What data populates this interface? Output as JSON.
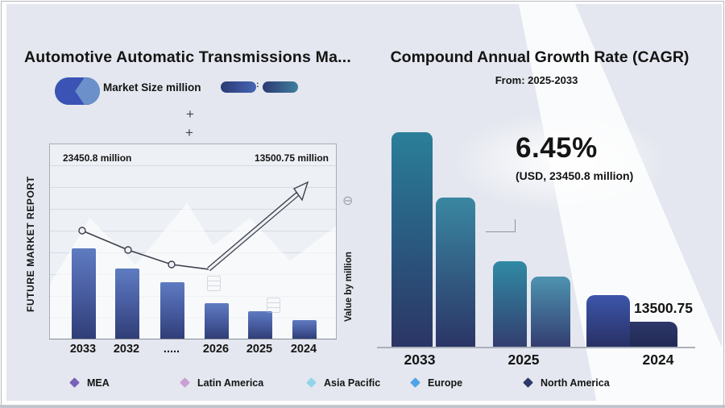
{
  "frame": {
    "bg": "#e4e7ef",
    "border_color": "#b6bac3"
  },
  "left_chart_ui": {
    "title": "Automotive Automatic Transmissions Ma...",
    "legend_label": "Market Size million",
    "legend_separator": ":",
    "plus_icon": "+",
    "plus_icon_2": "+",
    "minus_circle_icon": "⊖",
    "start_value": "23450.8 million",
    "end_value": "13500.75 million",
    "left_vertical_label": "FUTURE MARKET REPORT",
    "right_vertical_label": "Value by million"
  },
  "right_chart_ui": {
    "title": "Compound Annual Growth Rate (CAGR)",
    "subtitle": "From: 2025-2033",
    "cagr": "6.45%",
    "cagr_note": "(USD, 23450.8 million)",
    "annotation": "13500.75"
  },
  "bottom_legend": {
    "items": [
      {
        "label": "MEA",
        "color": "#7a62b8"
      },
      {
        "label": "Latin America",
        "color": "#c99fd4"
      },
      {
        "label": "Asia Pacific",
        "color": "#93d4ea"
      },
      {
        "label": "Europe",
        "color": "#4fa3e8"
      },
      {
        "label": "North America",
        "color": "#2c3968"
      }
    ]
  },
  "chart_data": [
    {
      "type": "bar",
      "title": "Automotive Automatic Transmissions Ma...",
      "series_name": "Market Size million",
      "categories": [
        "2033",
        "2032",
        ".....",
        "2026",
        "2025",
        "2024"
      ],
      "relative_heights_pct": [
        46.5,
        36.2,
        29.2,
        18.1,
        14.0,
        9.5
      ],
      "labeled_values": {
        "2033": "23450.8 million",
        "2024": "13500.75 million"
      },
      "unit": "million",
      "ylabel": "Value by million",
      "bar_color_top": "#5f7cc1",
      "bar_color_bottom": "#303e77",
      "trend": "line with circular markers declining from 2033 to 2026, then outlined arrow rising to upper right",
      "legend_position": "top-left",
      "grid": true
    },
    {
      "type": "bar",
      "title": "Compound Annual Growth Rate (CAGR)",
      "subtitle": "From: 2025-2033",
      "cagr_percent": 6.45,
      "base_value_label": "(USD, 23450.8 million)",
      "categories": [
        "2033",
        "2025",
        "2024"
      ],
      "series": [
        {
          "name": "series-1",
          "relative_heights_pct": [
            95,
            38,
            23
          ],
          "colors_top": [
            "#2a7f99",
            "#308aa4",
            "#3c55ab"
          ],
          "colors_bottom": [
            "#2b3566",
            "#333e70",
            "#293164"
          ]
        },
        {
          "name": "series-2",
          "relative_heights_pct": [
            66,
            31,
            11
          ],
          "colors_top": [
            "#3a87a2",
            "#4e93b0",
            "#2d3769"
          ],
          "colors_bottom": [
            "#2b3566",
            "#333e70",
            "#212a55"
          ]
        }
      ],
      "annotation": {
        "text": "13500.75",
        "category": "2024"
      },
      "grid": false
    }
  ]
}
